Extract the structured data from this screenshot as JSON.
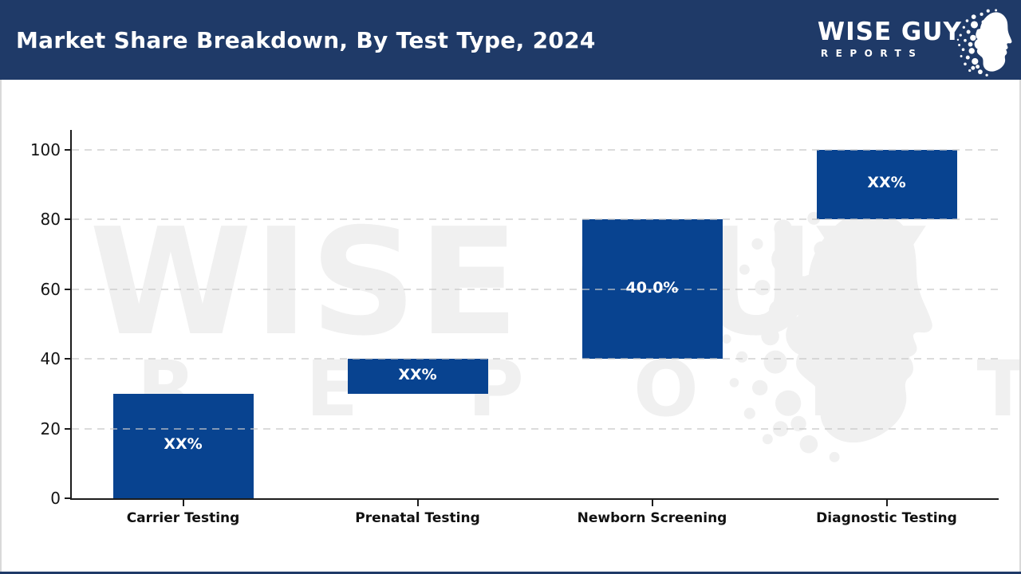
{
  "header": {
    "title": "Market Share Breakdown, By Test Type, 2024"
  },
  "logo": {
    "line1": "WISE GUY",
    "line2": "REPORTS"
  },
  "watermark": {
    "line1": "WISE GUY",
    "line2": "R E P O R T S"
  },
  "colors": {
    "header_bg": "#1f3a68",
    "footer_bg": "#1f3a68",
    "bar": "#084390",
    "bar_label_text": "#ffffff",
    "gridline": "#d9d9d9",
    "axis": "#1c1c1c",
    "watermark": "#f0f0f0",
    "page_border": "#d9d9d9",
    "title_text": "#ffffff"
  },
  "chart_data": {
    "type": "bar",
    "subtype": "waterfall (floating segment bars)",
    "title": "Market Share Breakdown, By Test Type, 2024",
    "categories": [
      "Carrier Testing",
      "Prenatal Testing",
      "Newborn Screening",
      "Diagnostic Testing"
    ],
    "series": [
      {
        "name": "Market Share (%)",
        "segments": [
          {
            "category": "Carrier Testing",
            "base": 0,
            "top": 30,
            "label": "XX%"
          },
          {
            "category": "Prenatal Testing",
            "base": 30,
            "top": 40,
            "label": "XX%"
          },
          {
            "category": "Newborn Screening",
            "base": 40,
            "top": 80,
            "label": "40.0%"
          },
          {
            "category": "Diagnostic Testing",
            "base": 80,
            "top": 100,
            "label": "XX%"
          }
        ]
      }
    ],
    "xlabel": "",
    "ylabel": "",
    "ylim": [
      0,
      100
    ],
    "yticks": [
      0,
      20,
      40,
      60,
      80,
      100
    ],
    "grid": "horizontal dashed",
    "legend": "none"
  }
}
